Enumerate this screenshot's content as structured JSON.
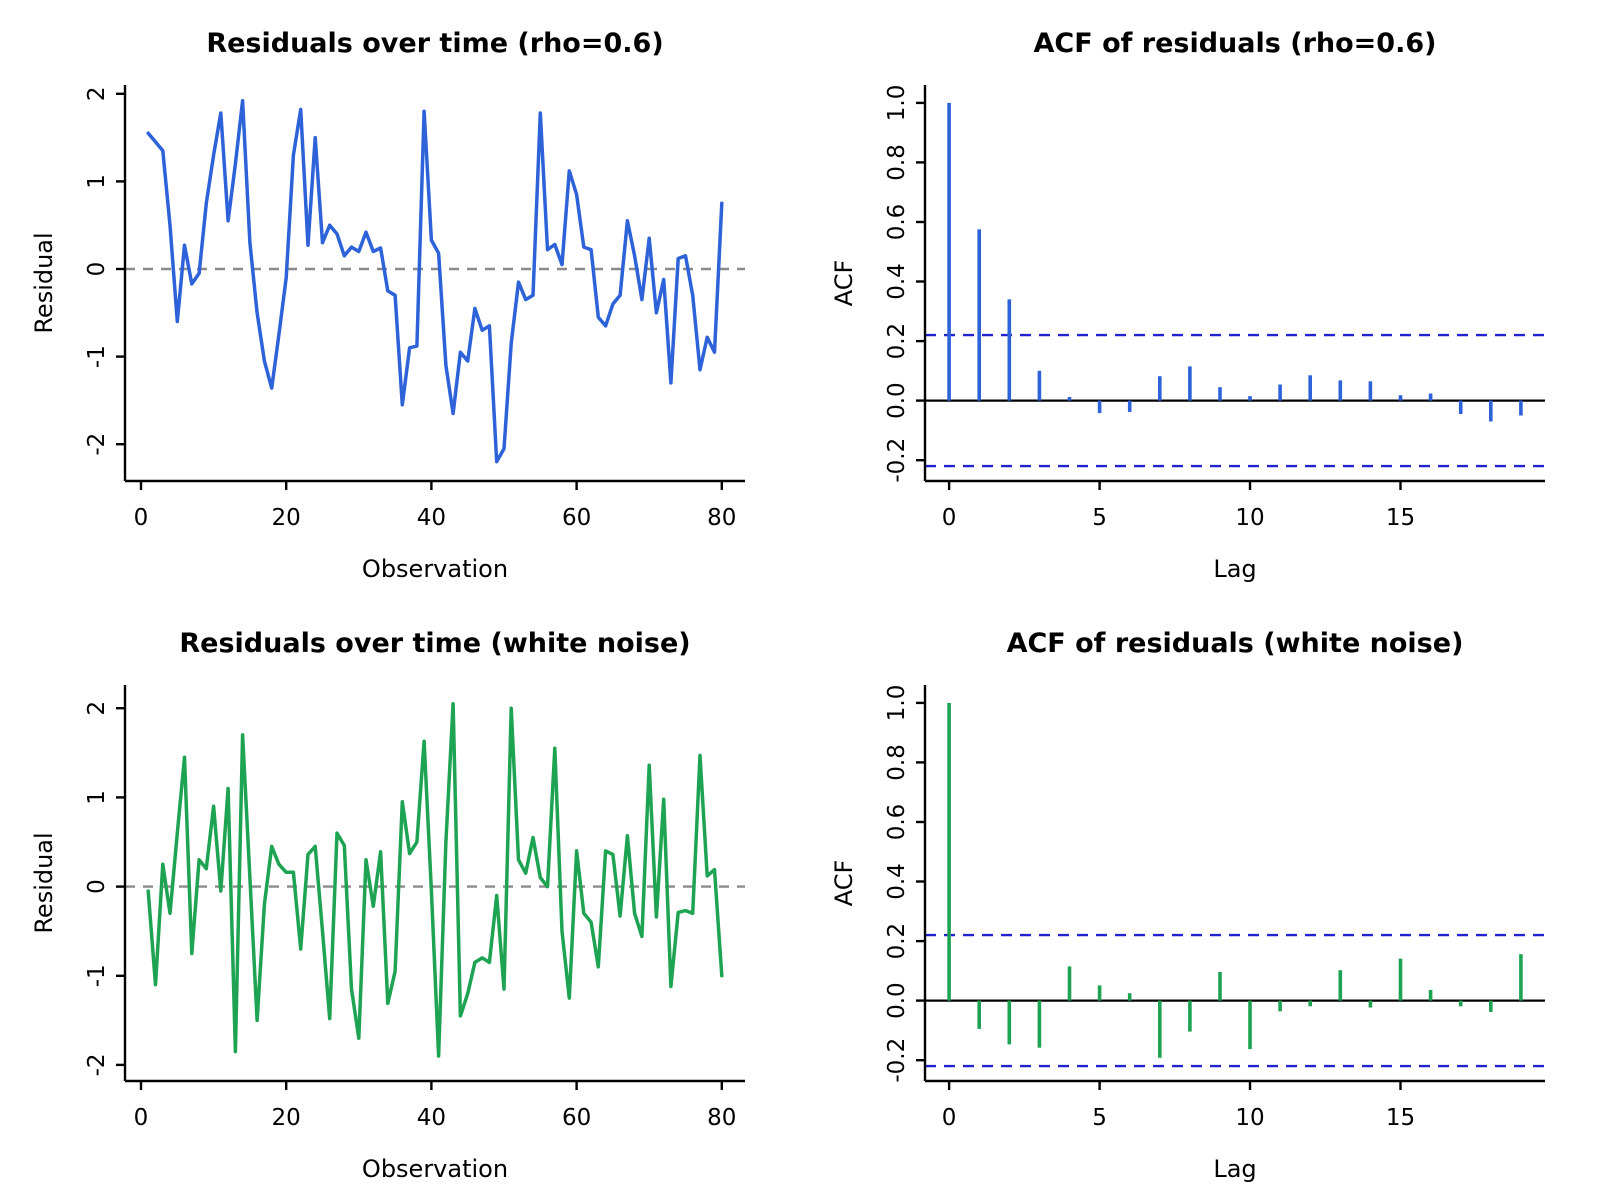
{
  "figure": {
    "background": "#ffffff",
    "text_color": "#000000",
    "zero_line_color": "#8a8a8a",
    "conf_line_color": "#2222cc"
  },
  "chart_data": [
    {
      "id": "residuals-rho",
      "type": "line",
      "title": "Residuals over time (rho=0.6)",
      "xlabel": "Observation",
      "ylabel": "Residual",
      "color": "#2d62d8",
      "grid": false,
      "zero_line": "dashed",
      "xlim": [
        -2.2,
        83.2
      ],
      "ylim": [
        -2.42,
        2.1
      ],
      "xticks": [
        0,
        20,
        40,
        60,
        80
      ],
      "xtick_labels": [
        "0",
        "20",
        "40",
        "60",
        "80"
      ],
      "yticks": [
        2,
        1,
        0,
        -1,
        -2
      ],
      "ytick_labels": [
        "2",
        "1",
        "0",
        "-1",
        "-2"
      ],
      "x": [
        1,
        2,
        3,
        4,
        5,
        6,
        7,
        8,
        9,
        10,
        11,
        12,
        13,
        14,
        15,
        16,
        17,
        18,
        19,
        20,
        21,
        22,
        23,
        24,
        25,
        26,
        27,
        28,
        29,
        30,
        31,
        32,
        33,
        34,
        35,
        36,
        37,
        38,
        39,
        40,
        41,
        42,
        43,
        44,
        45,
        46,
        47,
        48,
        49,
        50,
        51,
        52,
        53,
        54,
        55,
        56,
        57,
        58,
        59,
        60,
        61,
        62,
        63,
        64,
        65,
        66,
        67,
        68,
        69,
        70,
        71,
        72,
        73,
        74,
        75,
        76,
        77,
        78,
        79,
        80
      ],
      "y": [
        1.55,
        1.45,
        1.35,
        0.5,
        -0.6,
        0.27,
        -0.17,
        -0.05,
        0.75,
        1.3,
        1.78,
        0.55,
        1.2,
        1.92,
        0.3,
        -0.5,
        -1.05,
        -1.36,
        -0.75,
        -0.1,
        1.3,
        1.82,
        0.27,
        1.5,
        0.3,
        0.5,
        0.4,
        0.15,
        0.25,
        0.2,
        0.42,
        0.2,
        0.24,
        -0.25,
        -0.3,
        -1.55,
        -0.9,
        -0.88,
        1.8,
        0.33,
        0.18,
        -1.1,
        -1.65,
        -0.95,
        -1.05,
        -0.45,
        -0.7,
        -0.65,
        -2.2,
        -2.05,
        -0.85,
        -0.15,
        -0.35,
        -0.3,
        1.78,
        0.22,
        0.28,
        0.05,
        1.12,
        0.85,
        0.25,
        0.22,
        -0.55,
        -0.65,
        -0.4,
        -0.3,
        0.55,
        0.15,
        -0.35,
        0.35,
        -0.5,
        -0.12,
        -1.3,
        0.12,
        0.15,
        -0.3,
        -1.15,
        -0.78,
        -0.95,
        0.75
      ]
    },
    {
      "id": "acf-rho",
      "type": "acf",
      "title": "ACF of residuals (rho=0.6)",
      "xlabel": "Lag",
      "ylabel": "ACF",
      "color": "#2d62d8",
      "grid": false,
      "conf_band": 0.22,
      "xlim": [
        -0.8,
        19.8
      ],
      "ylim": [
        -0.27,
        1.06
      ],
      "xticks": [
        0,
        5,
        10,
        15
      ],
      "xtick_labels": [
        "0",
        "5",
        "10",
        "15"
      ],
      "yticks": [
        1.0,
        0.8,
        0.6,
        0.4,
        0.2,
        0.0,
        -0.2
      ],
      "ytick_labels": [
        "1.0",
        "0.8",
        "0.6",
        "0.4",
        "0.2",
        "0.0",
        "-0.2"
      ],
      "lags": [
        0,
        1,
        2,
        3,
        4,
        5,
        6,
        7,
        8,
        9,
        10,
        11,
        12,
        13,
        14,
        15,
        16,
        17,
        18,
        19
      ],
      "acf": [
        1.0,
        0.575,
        0.34,
        0.1,
        0.012,
        -0.042,
        -0.038,
        0.082,
        0.115,
        0.045,
        0.015,
        0.054,
        0.085,
        0.068,
        0.065,
        0.018,
        0.024,
        -0.045,
        -0.07,
        -0.05
      ]
    },
    {
      "id": "residuals-wn",
      "type": "line",
      "title": "Residuals over time (white noise)",
      "xlabel": "Observation",
      "ylabel": "Residual",
      "color": "#1ea352",
      "grid": false,
      "zero_line": "dashed",
      "xlim": [
        -2.2,
        83.2
      ],
      "ylim": [
        -2.18,
        2.26
      ],
      "xticks": [
        0,
        20,
        40,
        60,
        80
      ],
      "xtick_labels": [
        "0",
        "20",
        "40",
        "60",
        "80"
      ],
      "yticks": [
        2,
        1,
        0,
        -1,
        -2
      ],
      "ytick_labels": [
        "2",
        "1",
        "0",
        "-1",
        "-2"
      ],
      "x": [
        1,
        2,
        3,
        4,
        5,
        6,
        7,
        8,
        9,
        10,
        11,
        12,
        13,
        14,
        15,
        16,
        17,
        18,
        19,
        20,
        21,
        22,
        23,
        24,
        25,
        26,
        27,
        28,
        29,
        30,
        31,
        32,
        33,
        34,
        35,
        36,
        37,
        38,
        39,
        40,
        41,
        42,
        43,
        44,
        45,
        46,
        47,
        48,
        49,
        50,
        51,
        52,
        53,
        54,
        55,
        56,
        57,
        58,
        59,
        60,
        61,
        62,
        63,
        64,
        65,
        66,
        67,
        68,
        69,
        70,
        71,
        72,
        73,
        74,
        75,
        76,
        77,
        78,
        79,
        80
      ],
      "y": [
        -0.05,
        -1.1,
        0.25,
        -0.3,
        0.6,
        1.45,
        -0.75,
        0.3,
        0.2,
        0.9,
        -0.05,
        1.1,
        -1.85,
        1.7,
        0.1,
        -1.5,
        -0.2,
        0.45,
        0.25,
        0.16,
        0.16,
        -0.7,
        0.36,
        0.45,
        -0.5,
        -1.48,
        0.6,
        0.46,
        -1.15,
        -1.7,
        0.3,
        -0.22,
        0.39,
        -1.31,
        -0.95,
        0.95,
        0.37,
        0.5,
        1.63,
        -0.05,
        -1.9,
        0.5,
        2.05,
        -1.45,
        -1.2,
        -0.85,
        -0.8,
        -0.85,
        -0.1,
        -1.15,
        2.0,
        0.3,
        0.15,
        0.55,
        0.1,
        0.0,
        1.55,
        -0.5,
        -1.25,
        0.4,
        -0.3,
        -0.4,
        -0.9,
        0.4,
        0.36,
        -0.33,
        0.57,
        -0.3,
        -0.56,
        1.36,
        -0.34,
        0.98,
        -1.12,
        -0.29,
        -0.27,
        -0.3,
        1.47,
        0.12,
        0.19,
        -1.0
      ]
    },
    {
      "id": "acf-wn",
      "type": "acf",
      "title": "ACF of residuals (white noise)",
      "xlabel": "Lag",
      "ylabel": "ACF",
      "color": "#1ea352",
      "grid": false,
      "conf_band": 0.22,
      "xlim": [
        -0.8,
        19.8
      ],
      "ylim": [
        -0.27,
        1.06
      ],
      "xticks": [
        0,
        5,
        10,
        15
      ],
      "xtick_labels": [
        "0",
        "5",
        "10",
        "15"
      ],
      "yticks": [
        1.0,
        0.8,
        0.6,
        0.4,
        0.2,
        0.0,
        -0.2
      ],
      "ytick_labels": [
        "1.0",
        "0.8",
        "0.6",
        "0.4",
        "0.2",
        "0.0",
        "-0.2"
      ],
      "lags": [
        0,
        1,
        2,
        3,
        4,
        5,
        6,
        7,
        8,
        9,
        10,
        11,
        12,
        13,
        14,
        15,
        16,
        17,
        18,
        19
      ],
      "acf": [
        1.0,
        -0.095,
        -0.147,
        -0.158,
        0.115,
        0.051,
        0.025,
        -0.192,
        -0.104,
        0.096,
        -0.163,
        -0.036,
        -0.019,
        0.102,
        -0.023,
        0.141,
        0.036,
        -0.019,
        -0.038,
        0.156
      ]
    }
  ]
}
